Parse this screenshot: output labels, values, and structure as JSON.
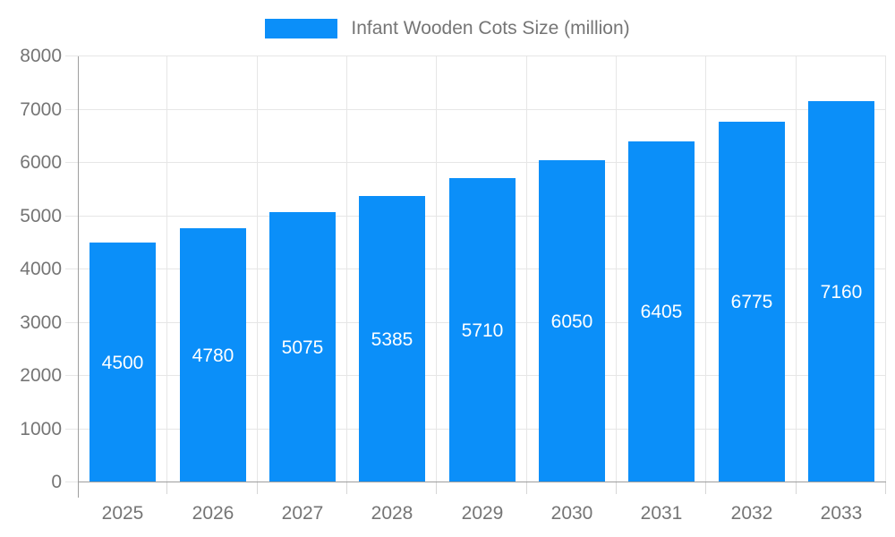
{
  "legend": {
    "label": "Infant Wooden Cots Size (million)"
  },
  "chart_data": {
    "type": "bar",
    "title": "Infant Wooden Cots Size (million)",
    "categories": [
      "2025",
      "2026",
      "2027",
      "2028",
      "2029",
      "2030",
      "2031",
      "2032",
      "2033"
    ],
    "series": [
      {
        "name": "Infant Wooden Cots Size (million)",
        "values": [
          4500,
          4780,
          5075,
          5385,
          5710,
          6050,
          6405,
          6775,
          7160
        ]
      }
    ],
    "bar_labels": [
      "4500",
      "4780",
      "5075",
      "5385",
      "5710",
      "6050",
      "6405",
      "6775",
      "7160"
    ],
    "xlabel": "",
    "ylabel": "",
    "ylim": [
      0,
      8000
    ],
    "yticks": [
      0,
      1000,
      2000,
      3000,
      4000,
      5000,
      6000,
      7000,
      8000
    ],
    "grid": true,
    "legend_position": "top",
    "colors": {
      "bar": "#0b8ff9",
      "grid": "#e6e6e6",
      "axis": "#9e9e9e",
      "tick_minor": "#d6d6d6",
      "text": "#757575",
      "bar_label": "#ffffff",
      "background": "#ffffff"
    }
  }
}
